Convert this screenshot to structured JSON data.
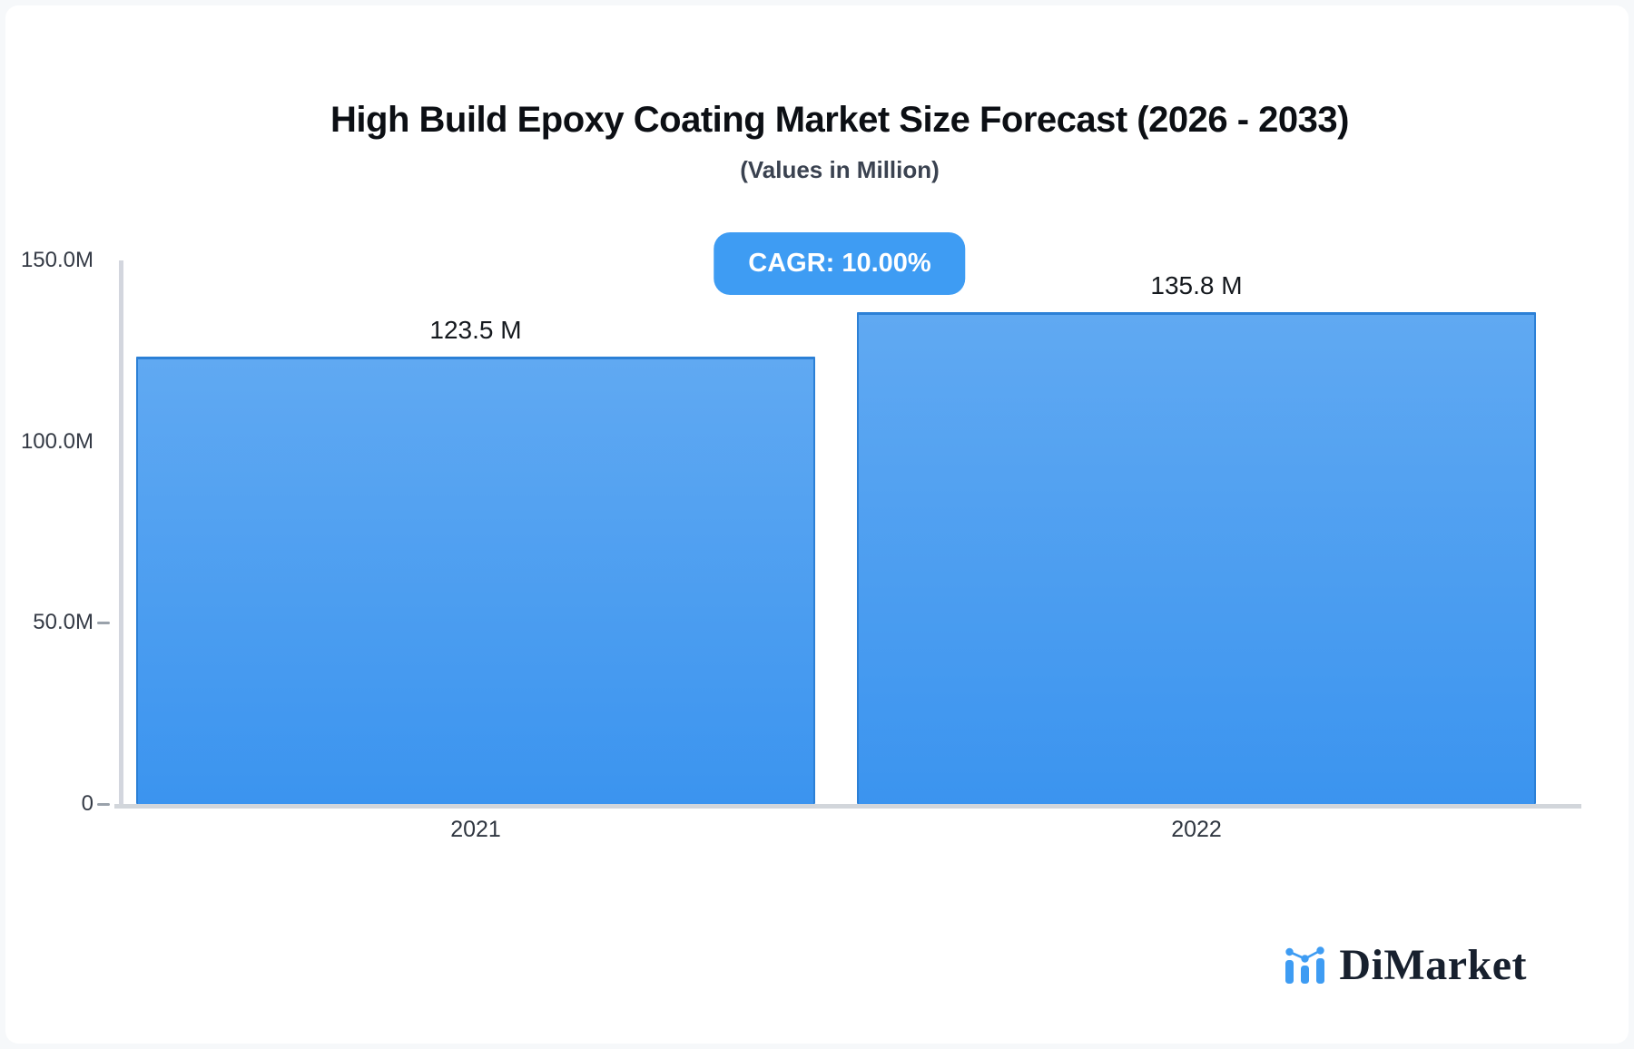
{
  "header": {
    "title": "High Build Epoxy Coating Market Size Forecast (2026 - 2033)",
    "subtitle": "(Values in Million)"
  },
  "badge": {
    "label": "CAGR: 10.00%",
    "color": "#3e9cf3"
  },
  "chart_data": {
    "type": "bar",
    "title": "High Build Epoxy Coating Market Size Forecast (2026 - 2033)",
    "subtitle": "(Values in Million)",
    "cagr": "10.00%",
    "categories": [
      "2021",
      "2022"
    ],
    "values": [
      123.5,
      135.8
    ],
    "value_labels": [
      "123.5 M",
      "135.8 M"
    ],
    "unit": "Million",
    "ylim": [
      0,
      150
    ],
    "yticks": [
      {
        "value": 150,
        "label": "150.0M",
        "dash": false
      },
      {
        "value": 100,
        "label": "100.0M",
        "dash": false
      },
      {
        "value": 50,
        "label": "50.0M",
        "dash": true
      },
      {
        "value": 0,
        "label": "0",
        "dash": true
      }
    ],
    "grid": false,
    "legend": false,
    "colors": {
      "bar_top": "#60a9f2",
      "bar_bottom": "#3b94ef",
      "bar_border": "#2c80d6",
      "axis": "#d2d6db",
      "badge": "#3e9cf3"
    }
  },
  "branding": {
    "logo_text": "DiMarket",
    "logo_icon": "bar-line-chart-icon",
    "logo_color": "#3e9cf3"
  }
}
